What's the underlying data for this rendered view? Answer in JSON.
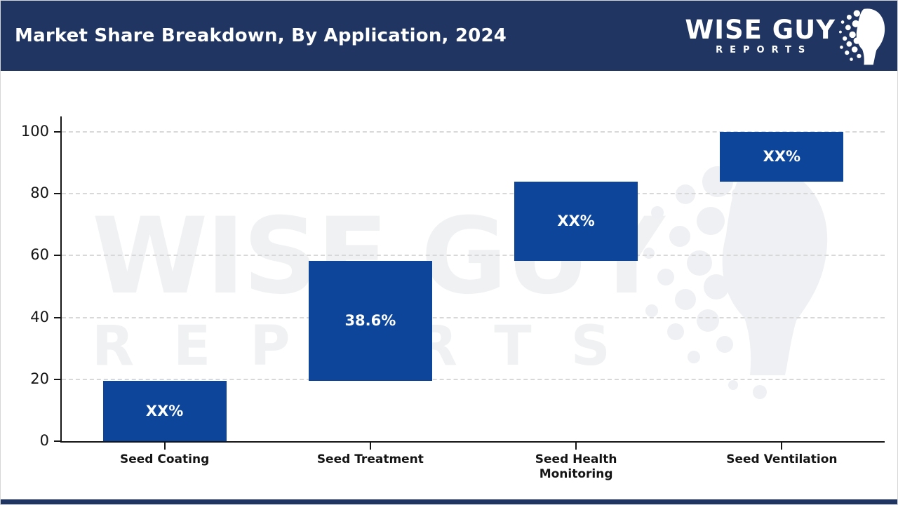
{
  "header": {
    "title": "Market Share Breakdown, By Application, 2024",
    "logo": {
      "line1": "WISE GUY",
      "line2": "REPORTS"
    }
  },
  "watermark": {
    "line1": "WISE GUY",
    "line2": "REPORTS"
  },
  "chart_data": {
    "type": "bar",
    "variant": "waterfall",
    "title": "Market Share Breakdown, By Application, 2024",
    "categories": [
      "Seed Coating",
      "Seed Treatment",
      "Seed Health\nMonitoring",
      "Seed Ventilation"
    ],
    "bars": [
      {
        "category": "Seed Coating",
        "start": 0,
        "end": 19.6,
        "label": "XX%"
      },
      {
        "category": "Seed Treatment",
        "start": 19.6,
        "end": 58.2,
        "label": "38.6%"
      },
      {
        "category": "Seed Health\nMonitoring",
        "start": 58.2,
        "end": 84.0,
        "label": "XX%"
      },
      {
        "category": "Seed Ventilation",
        "start": 84.0,
        "end": 100.0,
        "label": "XX%"
      }
    ],
    "xlabel": "",
    "ylabel": "",
    "ylim": [
      0,
      105
    ],
    "yticks": [
      0,
      20,
      40,
      60,
      80,
      100
    ],
    "grid": "horizontal dashed",
    "legend": "none",
    "bar_color": "#0c459a",
    "bar_label_color": "#ffffff",
    "header_bg_color": "#203562",
    "grid_color": "#d8d8d8",
    "axis_color": "#151515"
  }
}
